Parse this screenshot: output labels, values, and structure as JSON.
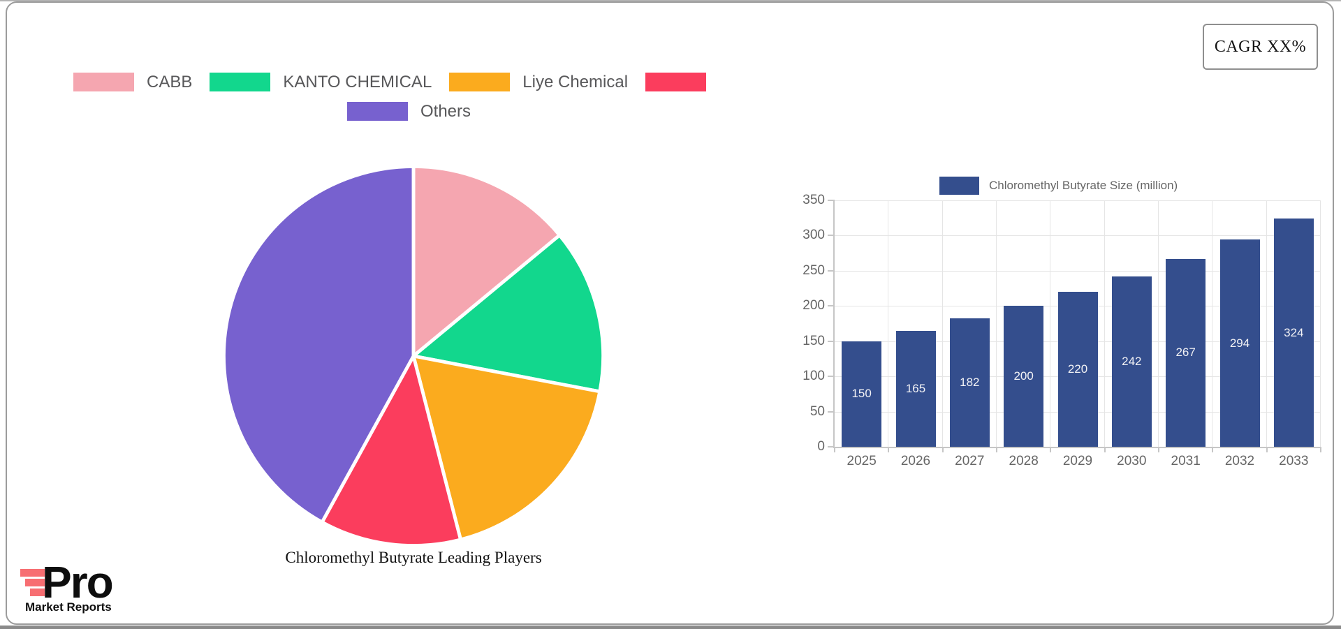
{
  "cagr_badge": {
    "label": "CAGR XX%"
  },
  "logo": {
    "name": "Pro",
    "tagline": "Market Reports",
    "accent_color": "#f76e72"
  },
  "chart_data": [
    {
      "type": "pie",
      "title": "Chloromethyl Butyrate Leading Players",
      "labels": [
        "CABB",
        "KANTO CHEMICAL",
        "Liye Chemical",
        "",
        "Others"
      ],
      "values": [
        14,
        14,
        18,
        12,
        42
      ],
      "colors": [
        "#f5a6b0",
        "#12d78d",
        "#fbab1e",
        "#fb3d5d",
        "#7761cf"
      ],
      "legend_rows": [
        1,
        1,
        1,
        1,
        2
      ],
      "legend_position": "top",
      "start_angle_deg": 0,
      "direction": "clockwise"
    },
    {
      "type": "bar",
      "legend_label": "Chloromethyl Butyrate Size (million)",
      "categories": [
        "2025",
        "2026",
        "2027",
        "2028",
        "2029",
        "2030",
        "2031",
        "2032",
        "2033"
      ],
      "values": [
        150,
        165,
        182,
        200,
        220,
        242,
        267,
        294,
        324
      ],
      "ylim": [
        0,
        350
      ],
      "ytick_step": 50,
      "grid": true,
      "legend_position": "top",
      "bar_color": "#344e8d",
      "value_label_color": "#f2f2f5",
      "axis_text_color": "#666666"
    }
  ]
}
